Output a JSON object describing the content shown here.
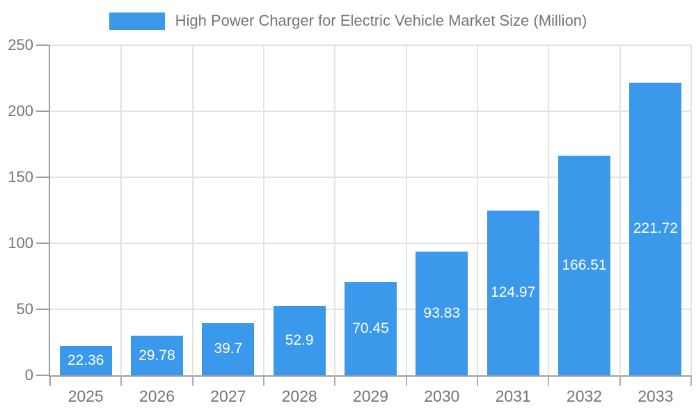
{
  "legend": {
    "label": "High Power Charger for Electric Vehicle Market Size (Million)"
  },
  "chart_data": {
    "type": "bar",
    "title": "High Power Charger for Electric Vehicle Market Size (Million)",
    "categories": [
      "2025",
      "2026",
      "2027",
      "2028",
      "2029",
      "2030",
      "2031",
      "2032",
      "2033"
    ],
    "values": [
      22.36,
      29.78,
      39.7,
      52.9,
      70.45,
      93.83,
      124.97,
      166.51,
      221.72
    ],
    "value_labels": [
      "22.36",
      "29.78",
      "39.7",
      "52.9",
      "70.45",
      "93.83",
      "124.97",
      "166.51",
      "221.72"
    ],
    "xlabel": "",
    "ylabel": "",
    "ylim": [
      0,
      250
    ],
    "yticks": [
      0,
      50,
      100,
      150,
      200,
      250
    ],
    "grid": true,
    "legend_position": "top-center",
    "value_label_position": "inside-center",
    "colors": {
      "bar": "#3B99EC",
      "grid": "#E3E3E3",
      "axis": "#9E9E9E",
      "x_tick": "#ADADAD",
      "axis_text": "#757575",
      "title_text": "#757575",
      "value_label_text": "#FFFFFF",
      "background": "#FFFFFF"
    }
  }
}
